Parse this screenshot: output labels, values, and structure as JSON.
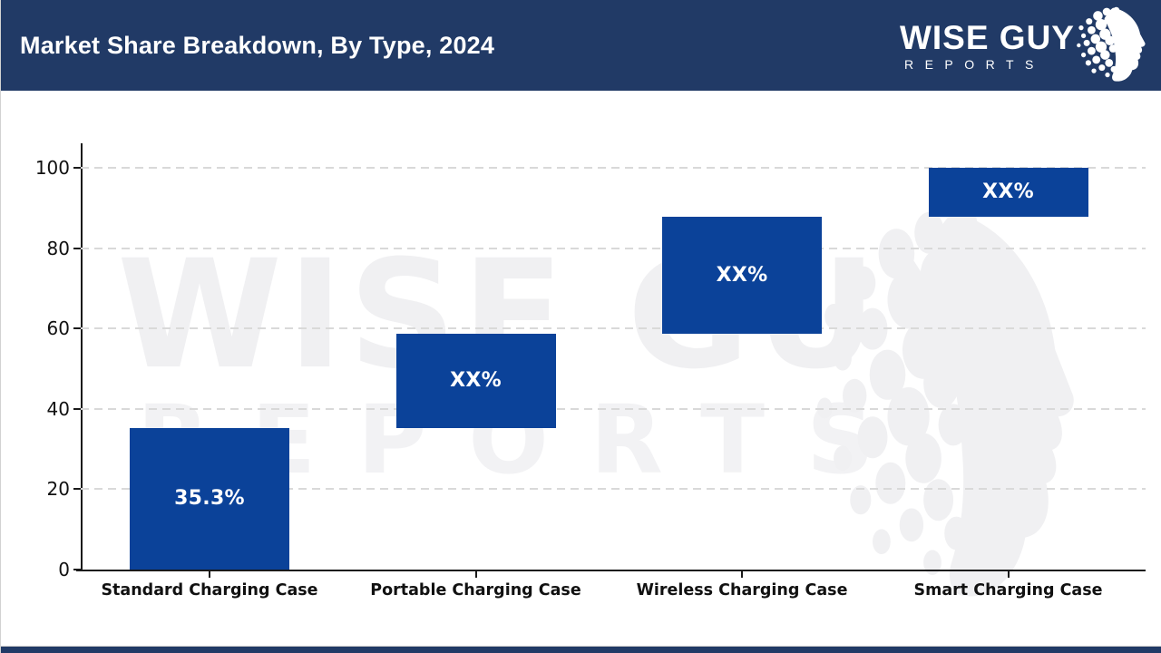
{
  "header": {
    "title": "Market Share Breakdown, By Type, 2024",
    "logo": {
      "line1": "WISE GUY",
      "line2": "REPORTS"
    }
  },
  "watermark": {
    "line1": "WISE GUY",
    "line2": "REPORTS"
  },
  "colors": {
    "header_bg": "#213a66",
    "bar": "#0b4299",
    "bar_value_text": "#ffffff",
    "gridline": "#d9d9d9",
    "axis": "#1a1a1a",
    "watermark": "#f0f0f2",
    "footer_bg": "#213a66"
  },
  "chart_data": {
    "type": "bar",
    "subtype": "waterfall",
    "title": "Market Share Breakdown, By Type, 2024",
    "xlabel": "",
    "ylabel": "",
    "ylim": [
      0,
      100
    ],
    "yticks": [
      0,
      20,
      40,
      60,
      80,
      100
    ],
    "grid": "horizontal dashed",
    "legend": "none",
    "bar_color": "#0b4299",
    "categories": [
      "Standard Charging Case",
      "Portable Charging Case",
      "Wireless Charging Case",
      "Smart Charging Case"
    ],
    "segments": [
      {
        "category": "Standard Charging Case",
        "start": 0,
        "end": 35.3,
        "value": 35.3,
        "label": "35.3%"
      },
      {
        "category": "Portable Charging Case",
        "start": 35.3,
        "end": 58.7,
        "value": 23.4,
        "label": "XX%"
      },
      {
        "category": "Wireless Charging Case",
        "start": 58.7,
        "end": 87.9,
        "value": 29.2,
        "label": "XX%"
      },
      {
        "category": "Smart Charging Case",
        "start": 87.9,
        "end": 100,
        "value": 12.1,
        "label": "XX%"
      }
    ]
  }
}
